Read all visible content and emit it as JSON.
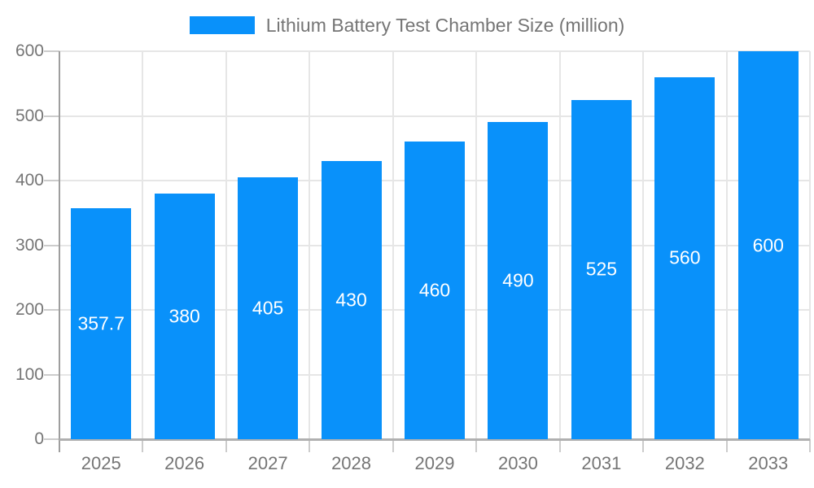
{
  "chart_data": {
    "type": "bar",
    "title": "Lithium Battery Test Chamber Size (million)",
    "categories": [
      "2025",
      "2026",
      "2027",
      "2028",
      "2029",
      "2030",
      "2031",
      "2032",
      "2033"
    ],
    "values": [
      357.7,
      380,
      405,
      430,
      460,
      490,
      525,
      560,
      600
    ],
    "value_labels": [
      "357.7",
      "380",
      "405",
      "430",
      "460",
      "490",
      "525",
      "560",
      "600"
    ],
    "xlabel": "",
    "ylabel": "",
    "ylim": [
      0,
      600
    ],
    "yticks": [
      0,
      100,
      200,
      300,
      400,
      500,
      600
    ],
    "ytick_labels": [
      "0",
      "100",
      "200",
      "300",
      "400",
      "500",
      "600"
    ],
    "grid": true,
    "legend_position": "top",
    "colors": {
      "bar": "#0991fa",
      "data_label": "#ffffff",
      "axis_text": "#757575",
      "gridline": "#e6e6e6",
      "axis_line": "#9e9e9e",
      "x_axis_line": "#b0b0b0",
      "tick": "#cccccc"
    }
  }
}
